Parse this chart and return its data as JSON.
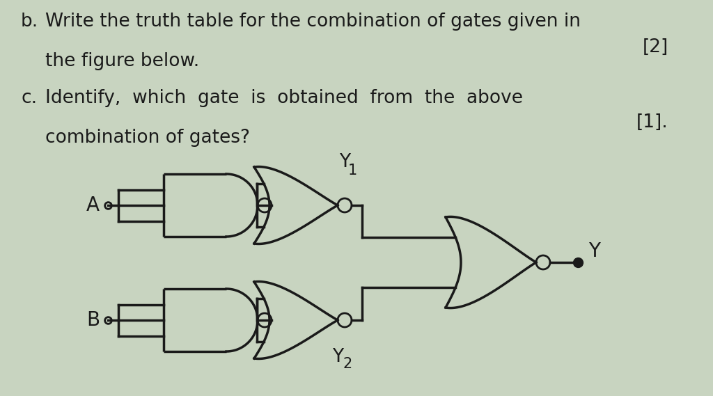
{
  "bg_color": "#c8d4c0",
  "text_color": "#1a1a1a",
  "line_color": "#1a1a1a",
  "line_width": 2.5,
  "label_A": "A",
  "label_B": "B",
  "label_Y1": "Y",
  "label_Y1_sub": "1",
  "label_Y2": "Y",
  "label_Y2_sub": "2",
  "label_Y": "Y",
  "text_b": "b.",
  "text_b_line1": "Write the truth table for the combination of gates given in",
  "text_b_line2": "the figure below.",
  "marks1": "[2]",
  "text_c": "c.",
  "text_c_line1": "Identify,  which  gate  is  obtained  from  the  above",
  "marks2": "[1].",
  "text_c_line2": "combination of gates?"
}
